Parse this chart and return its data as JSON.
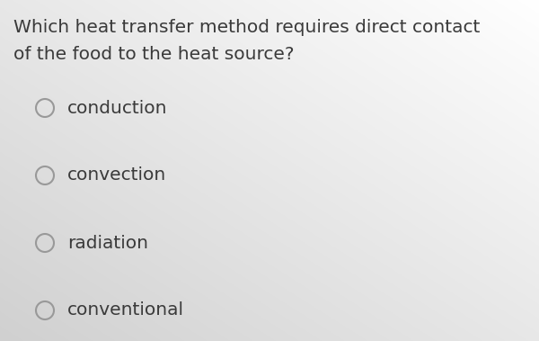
{
  "question_line1": "Which heat transfer method requires direct contact",
  "question_line2": "of the food to the heat source?",
  "options": [
    "conduction",
    "convection",
    "radiation",
    "conventional"
  ],
  "text_color": "#3a3a3a",
  "circle_edge_color": "#999999",
  "question_fontsize": 14.5,
  "option_fontsize": 14.5,
  "fig_width": 6.0,
  "fig_height": 3.79,
  "bg_color_top_left": "#d8d8d8",
  "bg_color_bottom_right": "#f8f8f8"
}
